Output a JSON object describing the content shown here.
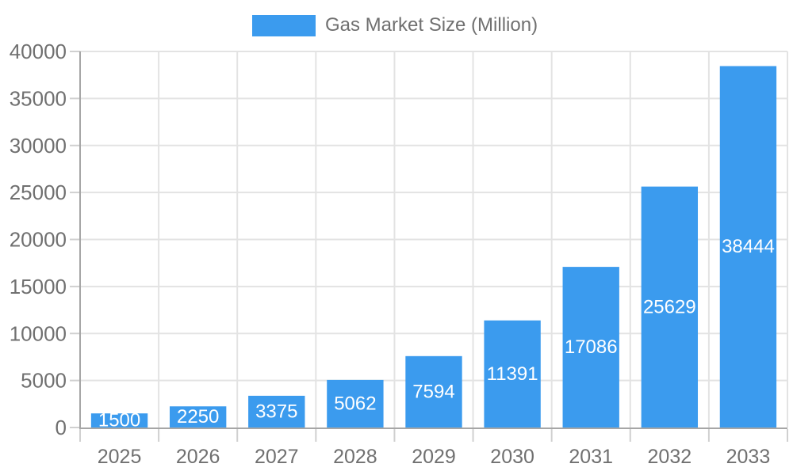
{
  "legend": {
    "label": "Gas Market Size (Million)"
  },
  "chart_data": {
    "type": "bar",
    "title": "",
    "series_name": "Gas Market Size (Million)",
    "categories": [
      "2025",
      "2026",
      "2027",
      "2028",
      "2029",
      "2030",
      "2031",
      "2032",
      "2033"
    ],
    "values": [
      1500,
      2250,
      3375,
      5062,
      7594,
      11391,
      17086,
      25629,
      38444
    ],
    "value_labels": [
      "1500",
      "2250",
      "3375",
      "5062",
      "7594",
      "11391",
      "17086",
      "25629",
      "38444"
    ],
    "ylim": [
      0,
      40000
    ],
    "yticks": [
      0,
      5000,
      10000,
      15000,
      20000,
      25000,
      30000,
      35000,
      40000
    ],
    "grid": true,
    "legend_position": "top",
    "colors": {
      "bar": "#3B9BEE",
      "value_label": "#FFFFFF",
      "axis_text": "#707070",
      "grid_line": "#E3E3E3",
      "tick_line": "#D0D0D0",
      "axis_line": "#A6A6A6"
    }
  }
}
